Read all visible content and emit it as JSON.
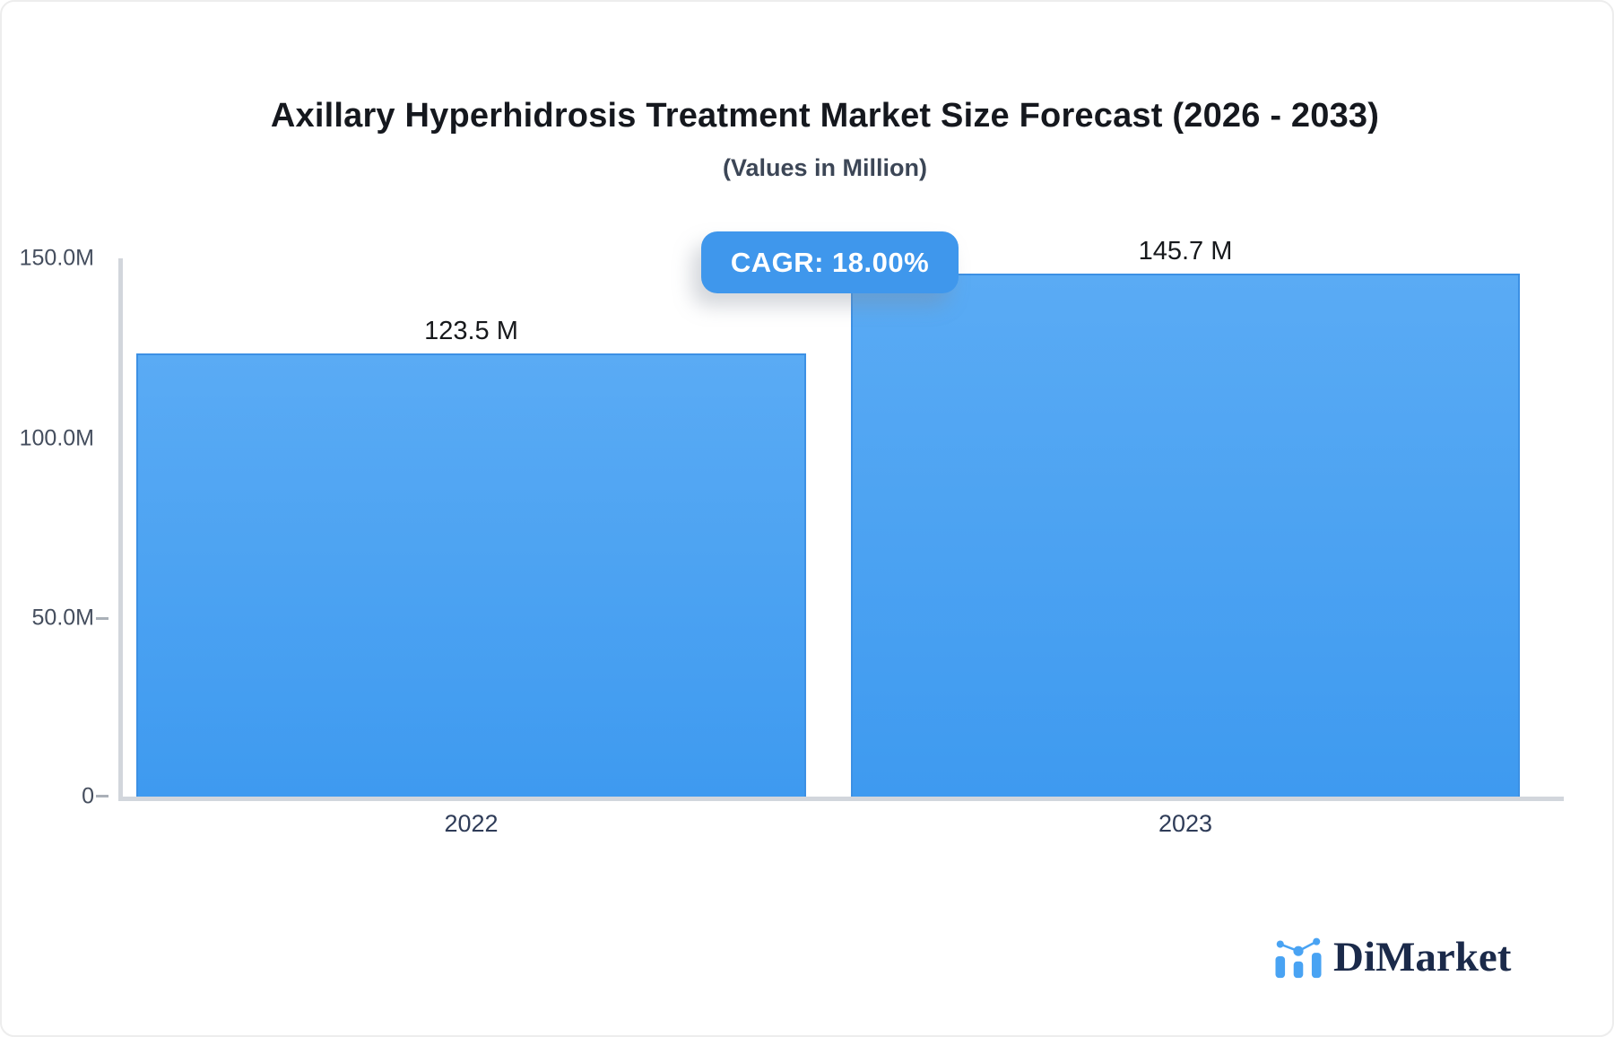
{
  "chart_data": {
    "type": "bar",
    "title": "Axillary Hyperhidrosis Treatment Market Size Forecast (2026 - 2033)",
    "subtitle": "(Values in Million)",
    "categories": [
      "2022",
      "2023"
    ],
    "values": [
      123.5,
      145.7
    ],
    "value_labels": [
      "123.5 M",
      "145.7 M"
    ],
    "unit": "Million",
    "cagr_label": "CAGR: 18.00%",
    "y_ticks": [
      "150.0M",
      "100.0M",
      "50.0M",
      "0"
    ],
    "ylim": [
      0,
      150
    ],
    "grid": false,
    "legend": "none",
    "bar_color_top": "#5aabf4",
    "bar_color_bottom": "#3e9af0",
    "bar_border_color": "#3c90e4",
    "badge_color": "#3f97ec",
    "axis_color": "#d2d6dc"
  },
  "branding": {
    "logo_text": "DiMarket",
    "logo_icon_color": "#49a3f3",
    "logo_text_color": "#1b2a4a"
  }
}
